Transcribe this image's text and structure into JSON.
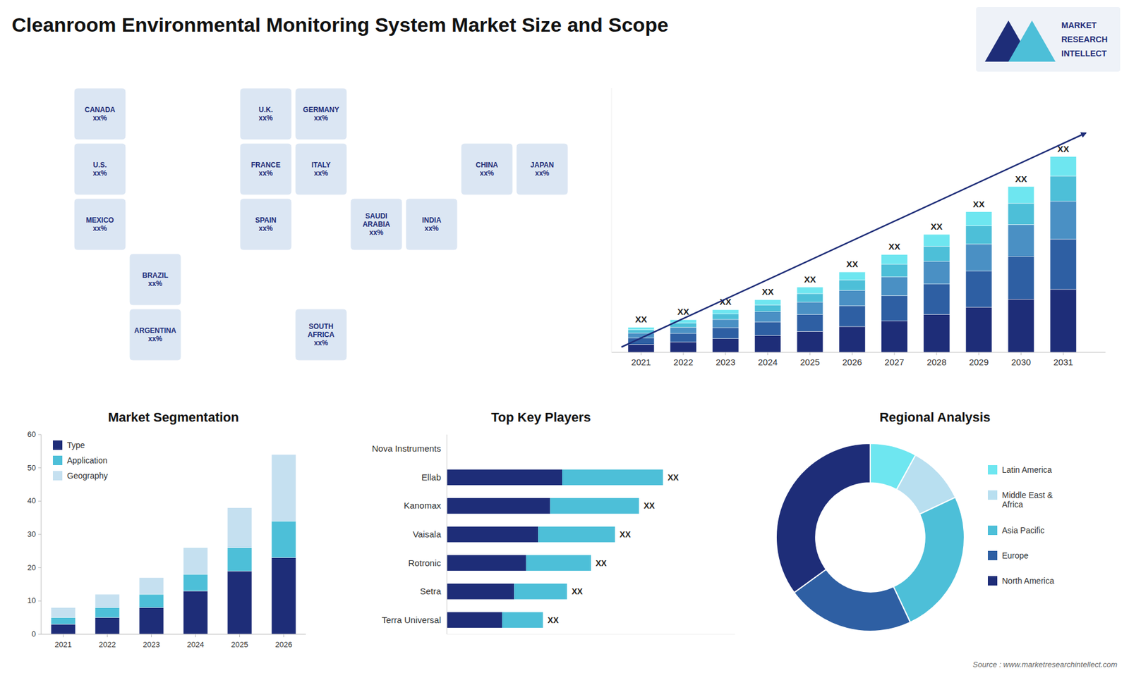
{
  "title": "Cleanroom Environmental Monitoring System Market Size and Scope",
  "source": "Source : www.marketresearchintellect.com",
  "logo_text": [
    "MARKET",
    "RESEARCH",
    "INTELLECT"
  ],
  "chart_data": [
    {
      "type": "map",
      "labels": [
        "CANADA\nxx%",
        "U.S.\nxx%",
        "MEXICO\nxx%",
        "BRAZIL\nxx%",
        "ARGENTINA\nxx%",
        "U.K.\nxx%",
        "FRANCE\nxx%",
        "SPAIN\nxx%",
        "GERMANY\nxx%",
        "ITALY\nxx%",
        "SAUDI\nARABIA\nxx%",
        "SOUTH\nAFRICA\nxx%",
        "CHINA\nxx%",
        "JAPAN\nxx%",
        "INDIA\nxx%"
      ]
    },
    {
      "type": "bar",
      "stacked": true,
      "x": [
        2021,
        2022,
        2023,
        2024,
        2025,
        2026,
        2027,
        2028,
        2029,
        2030,
        2031
      ],
      "xlim": [
        2020.3,
        2032.0
      ],
      "xticks": [
        2021,
        2022,
        2023,
        2024,
        2025,
        2026,
        2027,
        2028,
        2029,
        2030,
        2031
      ],
      "ylim": [
        0,
        16.3755
      ],
      "tick_labels": "x",
      "grid": false,
      "series": [
        {
          "color": "#1e2d78",
          "values": [
            0.5,
            0.65,
            0.85,
            1.05,
            1.3,
            1.6,
            1.95,
            2.35,
            2.8,
            3.3,
            3.9
          ]
        },
        {
          "color": "#2e5fa3",
          "values": [
            0.4,
            0.52,
            0.68,
            0.84,
            1.04,
            1.28,
            1.56,
            1.88,
            2.24,
            2.64,
            3.12
          ]
        },
        {
          "color": "#4a90c4",
          "values": [
            0.3,
            0.39,
            0.51,
            0.63,
            0.78,
            0.96,
            1.17,
            1.41,
            1.68,
            1.98,
            2.34
          ]
        },
        {
          "color": "#4dbfd8",
          "values": [
            0.2,
            0.26,
            0.34,
            0.42,
            0.52,
            0.64,
            0.78,
            0.94,
            1.12,
            1.32,
            1.56
          ]
        },
        {
          "color": "#6ee6f0",
          "values": [
            0.15,
            0.2,
            0.26,
            0.32,
            0.4,
            0.5,
            0.6,
            0.73,
            0.87,
            1.03,
            1.21
          ]
        }
      ],
      "annotations": [
        "XX",
        "XX",
        "XX",
        "XX",
        "XX",
        "XX",
        "XX",
        "XX",
        "XX",
        "XX",
        "XX"
      ]
    },
    {
      "type": "bar",
      "stacked": true,
      "title": "Market Segmentation",
      "x": [
        2021,
        2022,
        2023,
        2024,
        2025,
        2026
      ],
      "xlim": [
        2020.5,
        2026.5
      ],
      "xticks": [
        2021,
        2022,
        2023,
        2024,
        2025,
        2026
      ],
      "ylim": [
        0,
        60
      ],
      "yticks": [
        0,
        10,
        20,
        30,
        40,
        50,
        60
      ],
      "grid": false,
      "legend": "upper left",
      "series": [
        {
          "name": "Type",
          "color": "#1e2d78",
          "values": [
            3,
            5,
            8,
            13,
            19,
            23
          ]
        },
        {
          "name": "Application",
          "color": "#4dbfd8",
          "values": [
            2,
            3,
            4,
            5,
            7,
            11
          ]
        },
        {
          "name": "Geography",
          "color": "#c5e0f0",
          "values": [
            3,
            4,
            5,
            8,
            12,
            20
          ]
        }
      ]
    },
    {
      "type": "bar",
      "orientation": "horizontal",
      "stacked": true,
      "title": "Top Key Players",
      "categories": [
        "Nova Instruments",
        "Ellab",
        "Kanomax",
        "Vaisala",
        "Rotronic",
        "Setra",
        "Terra Universal"
      ],
      "xlim": [
        0,
        12
      ],
      "tick_labels": "y",
      "grid": false,
      "series": [
        {
          "color": "#1e2d78",
          "values": [
            0,
            4.8,
            4.3,
            3.8,
            3.3,
            2.8,
            2.3
          ]
        },
        {
          "color": "#4dbfd8",
          "values": [
            0,
            4.2,
            3.7,
            3.2,
            2.7,
            2.2,
            1.7
          ]
        }
      ],
      "annotations": [
        null,
        "XX",
        "XX",
        "XX",
        "XX",
        "XX",
        "XX"
      ]
    },
    {
      "type": "donut",
      "title": "Regional Analysis",
      "categories": [
        "Latin America",
        "Middle East &\nAfrica",
        "Asia Pacific",
        "Europe",
        "North America"
      ],
      "values": [
        8,
        10,
        25,
        22,
        35
      ],
      "colors": [
        "#6ee6f0",
        "#b8dff0",
        "#4dbfd8",
        "#2e5fa3",
        "#1e2d78"
      ],
      "legend": "right"
    }
  ]
}
